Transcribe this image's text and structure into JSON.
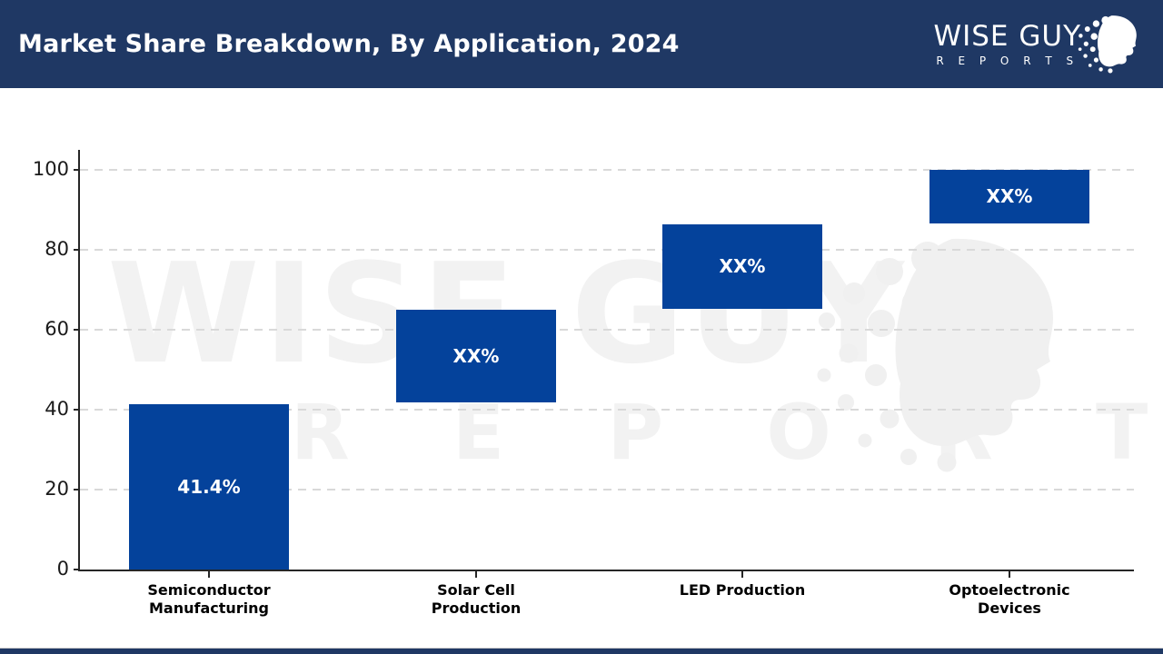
{
  "header": {
    "title": "Market Share Breakdown, By Application, 2024",
    "logo": {
      "brand_line1": "WISE GUY",
      "brand_line2": "R E P O R T S"
    }
  },
  "watermark": {
    "text_line1": "WISE GUY",
    "text_line2": "R E P O R T S"
  },
  "chart_data": {
    "type": "bar",
    "subtype": "floating-waterfall",
    "title": "Market Share Breakdown, By Application, 2024",
    "xlabel": "",
    "ylabel": "",
    "ylim": [
      0,
      105
    ],
    "yticks": [
      0,
      20,
      40,
      60,
      80,
      100
    ],
    "grid": "horizontal-dashed",
    "legend": "none",
    "categories": [
      "Semiconductor Manufacturing",
      "Solar Cell Production",
      "LED Production",
      "Optoelectronic Devices"
    ],
    "bars": [
      {
        "category": "Semiconductor Manufacturing",
        "lines": [
          "Semiconductor",
          "Manufacturing"
        ],
        "start": 0,
        "end": 41.4,
        "label": "41.4%"
      },
      {
        "category": "Solar Cell Production",
        "lines": [
          "Solar Cell",
          "Production"
        ],
        "start": 41.8,
        "end": 65.0,
        "label": "XX%"
      },
      {
        "category": "LED Production",
        "lines": [
          "LED Production"
        ],
        "start": 65.2,
        "end": 86.4,
        "label": "XX%"
      },
      {
        "category": "Optoelectronic Devices",
        "lines": [
          "Optoelectronic",
          "Devices"
        ],
        "start": 86.6,
        "end": 100.0,
        "label": "XX%"
      }
    ],
    "colors": {
      "bar": "#04429b",
      "bar_label": "#ffffff",
      "grid": "#d9d9d9",
      "axis": "#262626",
      "header_bg": "#1f3864",
      "footer_bg": "#1f3864",
      "title_text": "#ffffff",
      "watermark": "#f2f2f2"
    }
  }
}
